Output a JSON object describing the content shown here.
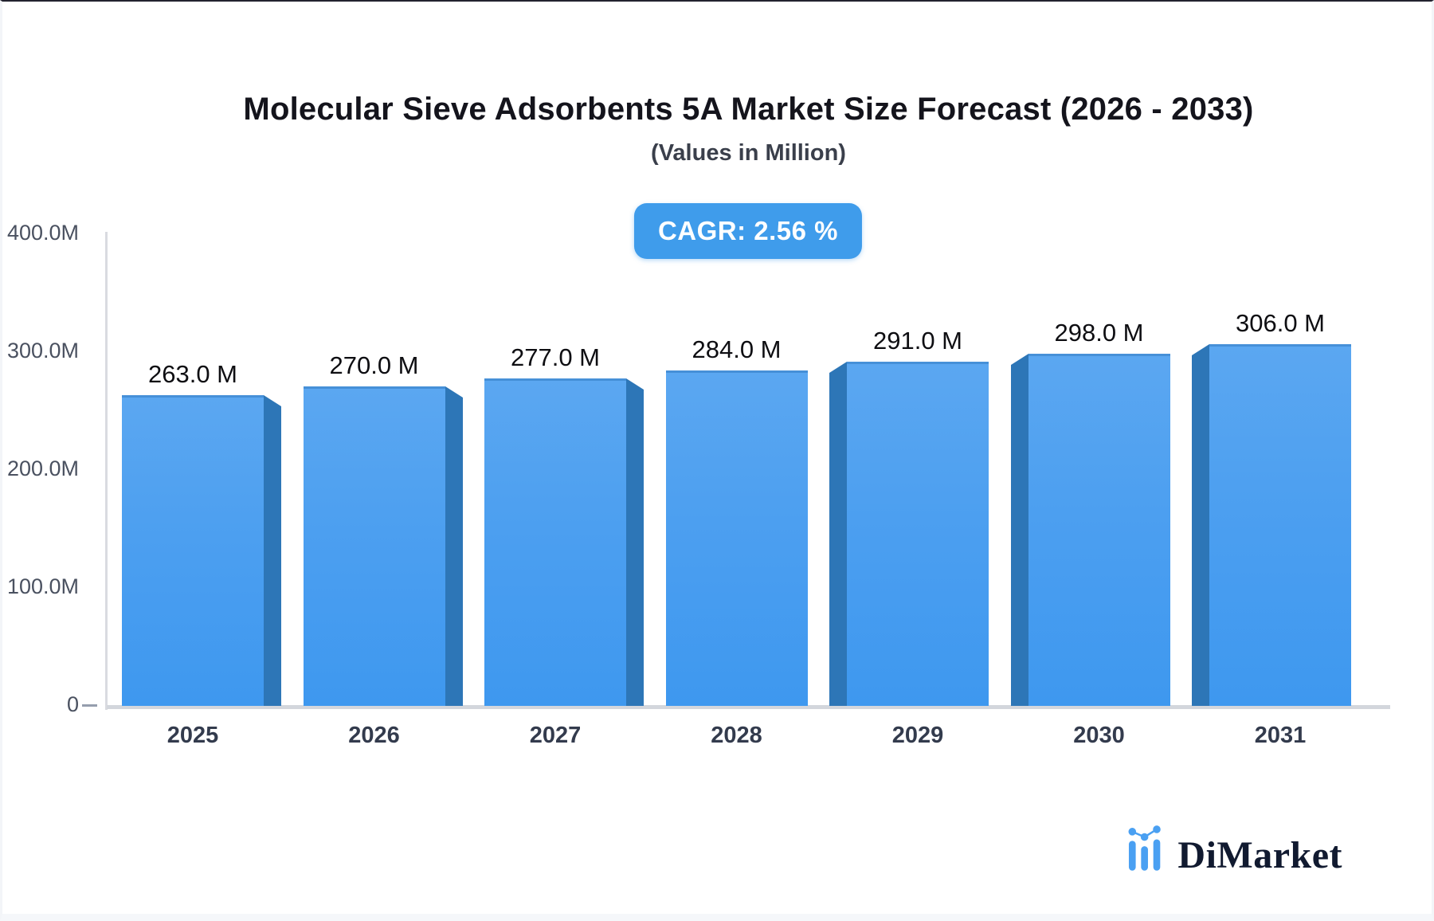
{
  "header": {
    "title": "Molecular Sieve Adsorbents 5A Market Size Forecast (2026 - 2033)",
    "subtitle": "(Values in Million)"
  },
  "cagr_badge": {
    "label": "CAGR: 2.56 %",
    "background": "#3f9ceb",
    "text_color": "#ffffff"
  },
  "chart_data": {
    "type": "bar",
    "title": "Molecular Sieve Adsorbents 5A Market Size Forecast (2026 - 2033)",
    "subtitle": "(Values in Million)",
    "unit": "Million",
    "categories": [
      "2025",
      "2026",
      "2027",
      "2028",
      "2029",
      "2030",
      "2031"
    ],
    "values": [
      263,
      270,
      277,
      284,
      291,
      298,
      306
    ],
    "bar_labels": [
      "263.0 M",
      "270.0 M",
      "277.0 M",
      "284.0 M",
      "291.0 M",
      "298.0 M",
      "306.0 M"
    ],
    "y_axis": {
      "tick_labels": [
        "400.0M",
        "300.0M",
        "200.0M",
        "100.0M",
        "0"
      ],
      "tick_values": [
        400,
        300,
        200,
        100,
        0
      ],
      "min": 0,
      "max": 400
    },
    "grid": false,
    "legend": "none",
    "style_3d": "center-perspective extruded bars",
    "colors": {
      "bar_face_top": "#5ba7f1",
      "bar_face_bottom": "#3e98ef",
      "bar_top_edge": "#4690d8",
      "bar_side": "#2d76b7",
      "axis_line": "#d9dbe0",
      "baseline": "#d3d6dc",
      "y_tick_text": "#4a5160",
      "x_tick_text": "#333b4d",
      "value_label_text": "#0e0e12"
    }
  },
  "watermark": {
    "text": "DiMarket",
    "icon": "bar-line-chart-icon",
    "text_color": "#111a30",
    "icon_color": "#4aa0f2"
  }
}
